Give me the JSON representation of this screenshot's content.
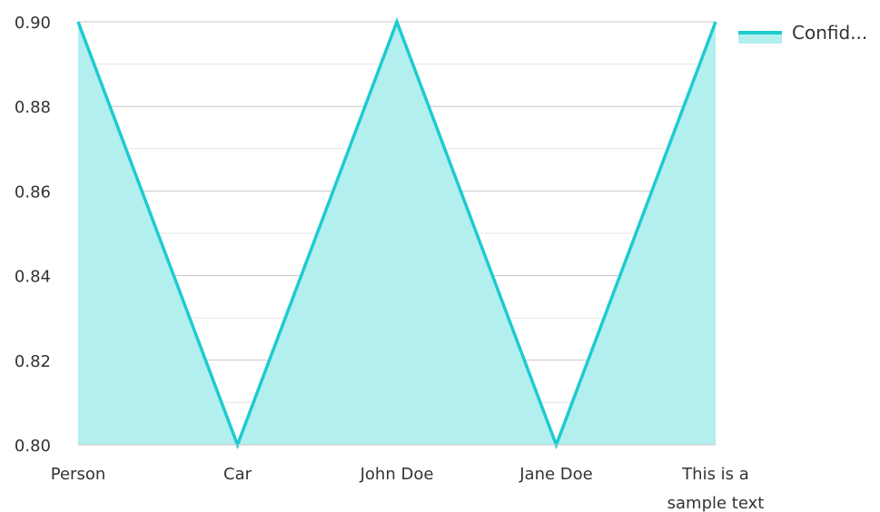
{
  "chart_data": {
    "type": "area",
    "categories": [
      "Person",
      "Car",
      "John Doe",
      "Jane Doe",
      "This is a sample text"
    ],
    "series": [
      {
        "name": "Confid...",
        "values": [
          0.9,
          0.8,
          0.9,
          0.8,
          0.9
        ]
      }
    ],
    "y_ticks": [
      "0.90",
      "0.88",
      "0.86",
      "0.84",
      "0.82",
      "0.80"
    ],
    "ylim": [
      0.8,
      0.9
    ],
    "grid": true,
    "legend_position": "top-right",
    "colors": {
      "line": "#1ecbcf",
      "fill": "#b2efee",
      "grid_major": "#c7c7c7",
      "grid_minor": "#e6e6e6"
    }
  }
}
